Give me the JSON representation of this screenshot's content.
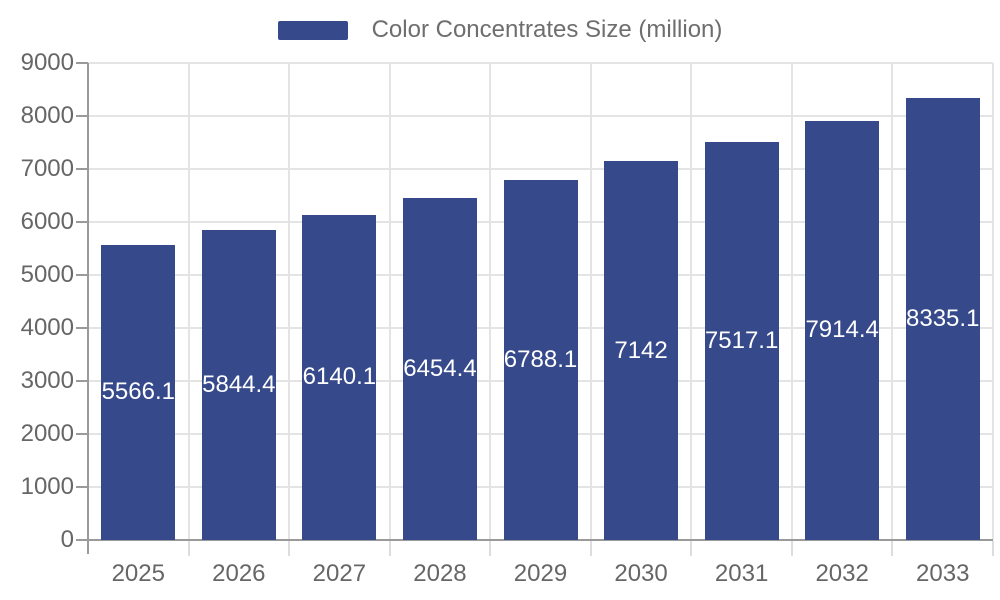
{
  "chart_data": {
    "type": "bar",
    "title": "",
    "legend": "Color Concentrates Size (million)",
    "legend_position": "top-center",
    "categories": [
      "2025",
      "2026",
      "2027",
      "2028",
      "2029",
      "2030",
      "2031",
      "2032",
      "2033"
    ],
    "values": [
      5566.1,
      5844.4,
      6140.1,
      6454.4,
      6788.1,
      7142,
      7517.1,
      7914.4,
      8335.1
    ],
    "value_labels": [
      "5566.1",
      "5844.4",
      "6140.1",
      "6454.4",
      "6788.1",
      "7142",
      "7517.1",
      "7914.4",
      "8335.1"
    ],
    "xlabel": "",
    "ylabel": "",
    "ylim": [
      0,
      9000
    ],
    "ytick_step": 1000,
    "y_tick_labels": [
      "0",
      "1000",
      "2000",
      "3000",
      "4000",
      "5000",
      "6000",
      "7000",
      "8000",
      "9000"
    ],
    "grid": true,
    "colors": {
      "bar": "#36498A",
      "grid": "#e4e4e4",
      "axis": "#9a9a9a",
      "x_tick": "#dddddd",
      "axis_label": "#666666",
      "legend_text": "#6e6e6e",
      "value_label": "#ffffff"
    }
  }
}
